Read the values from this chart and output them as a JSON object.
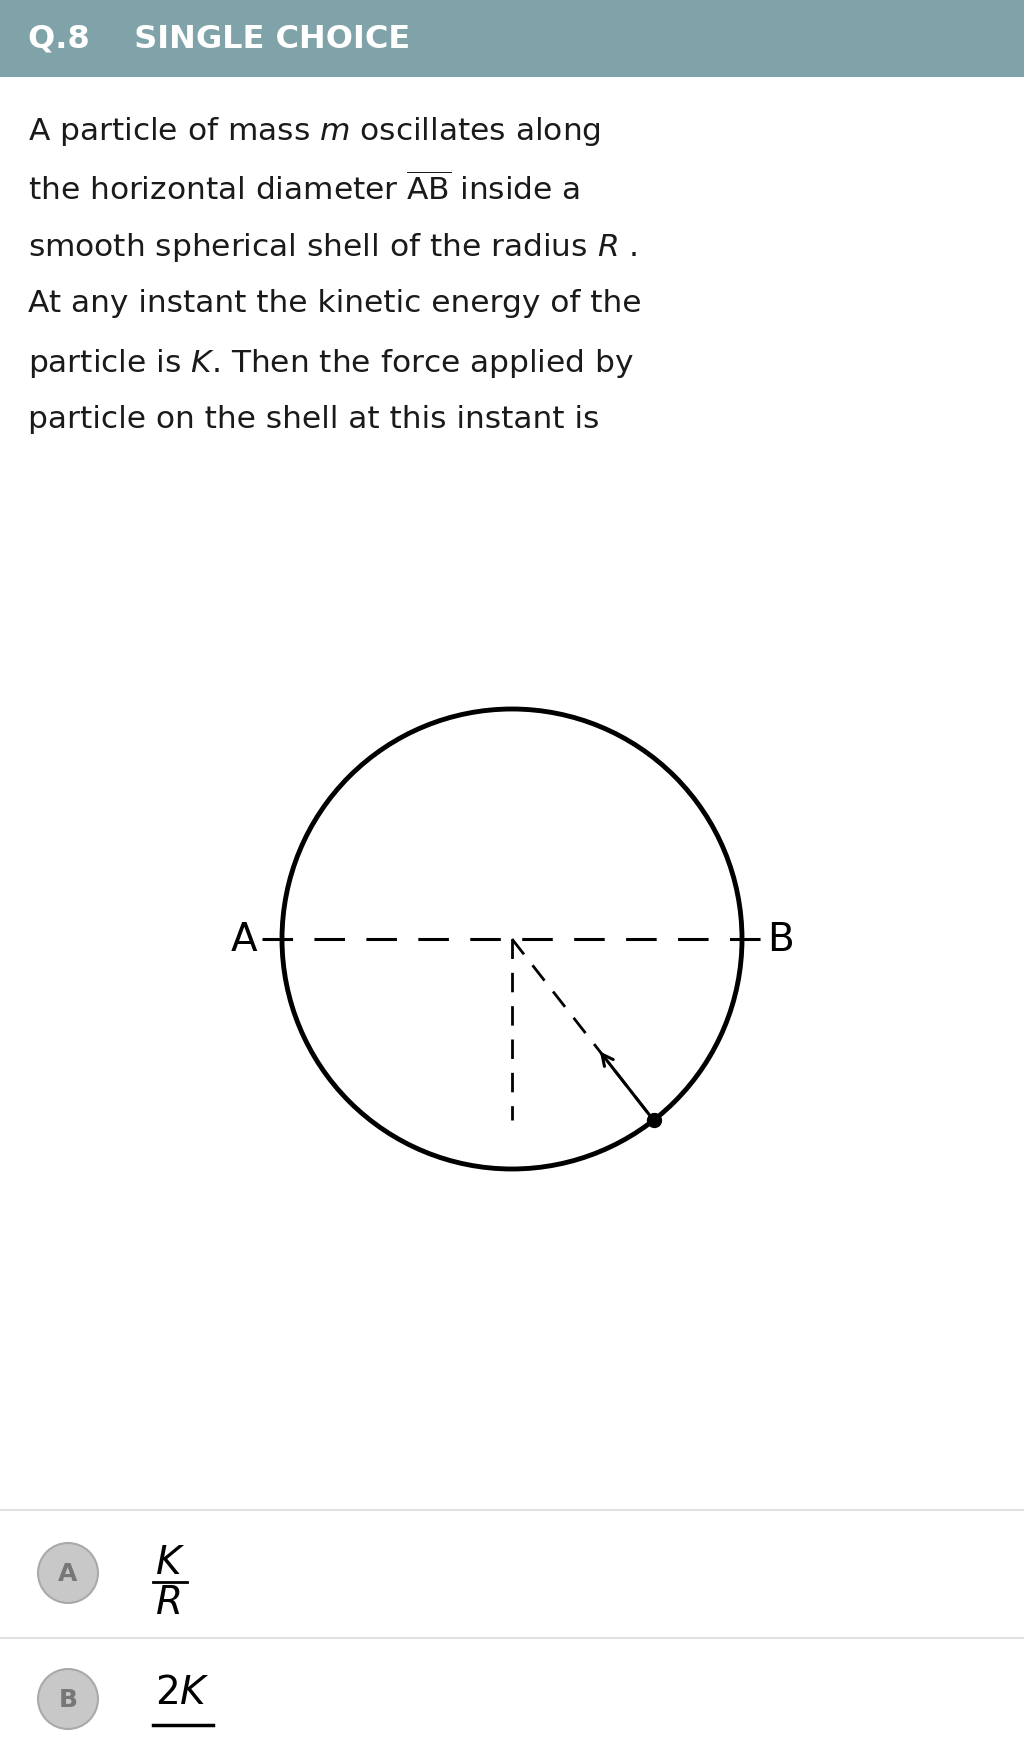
{
  "header_text": "Q.8    SINGLE CHOICE",
  "header_bg": "#7fa3a8",
  "header_text_color": "#ffffff",
  "bg_color": "#ffffff",
  "body_text_color": "#1a1a1a",
  "question_lines": [
    "A particle of mass $m$ oscillates along",
    "the horizontal diameter $\\overline{\\rm AB}$ inside a",
    "smooth spherical shell of the radius $R$ .",
    "At any instant the kinetic energy of the",
    "particle is $K$. Then the force applied by",
    "particle on the shell at this instant is"
  ],
  "header_bg_color": "#7fa3a8",
  "option_circle_fill": "#c8c8c8",
  "option_circle_edge": "#aaaaaa"
}
